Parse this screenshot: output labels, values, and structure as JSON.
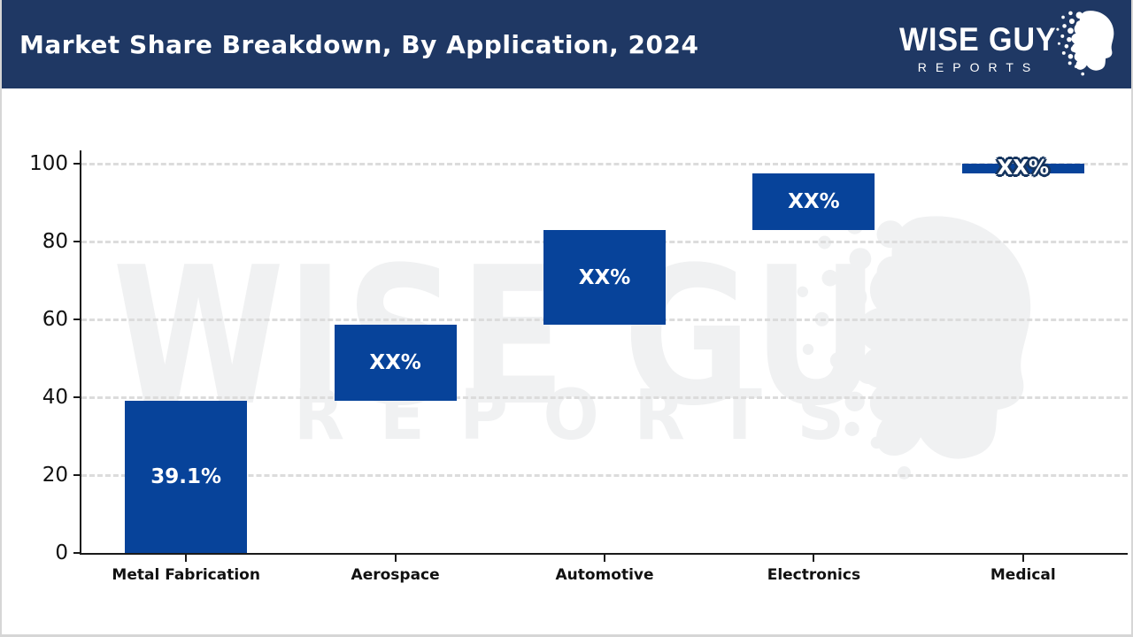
{
  "header": {
    "title": "Market Share Breakdown, By Application, 2024",
    "logo": {
      "line1": "WISE GUY",
      "line2": "REPORTS"
    }
  },
  "watermark": {
    "line1": "WISE GUY",
    "line2": "REPORTS"
  },
  "colors": {
    "header_bg": "#1f3864",
    "bar": "#07439a",
    "axis": "#1a1a1a",
    "gridline": "#dcdcdc",
    "watermark": "#f0f1f2",
    "frame_border": "#d6d6d6",
    "bar_label": "#ffffff"
  },
  "chart_data": {
    "type": "bar",
    "subtype": "waterfall-floating",
    "title": "Market Share Breakdown, By Application, 2024",
    "categories": [
      "Metal Fabrication",
      "Aerospace",
      "Automotive",
      "Electronics",
      "Medical"
    ],
    "bars": [
      {
        "category": "Metal Fabrication",
        "start": 0,
        "end": 39.1,
        "label": "39.1%"
      },
      {
        "category": "Aerospace",
        "start": 39.1,
        "end": 58.6,
        "label": "XX%"
      },
      {
        "category": "Automotive",
        "start": 58.6,
        "end": 82.9,
        "label": "XX%"
      },
      {
        "category": "Electronics",
        "start": 82.9,
        "end": 97.6,
        "label": "XX%"
      },
      {
        "category": "Medical",
        "start": 97.6,
        "end": 100,
        "label": "XX%"
      }
    ],
    "xlabel": "",
    "ylabel": "",
    "ylim": [
      0,
      100
    ],
    "yticks": [
      0,
      20,
      40,
      60,
      80,
      100
    ],
    "grid": "horizontal-dashed",
    "legend": null
  }
}
